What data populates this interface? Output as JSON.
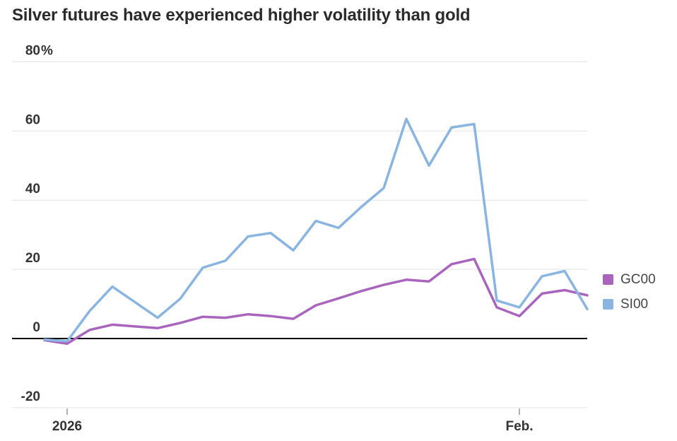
{
  "title": "Silver futures have experienced higher volatility than gold",
  "legend": {
    "items": [
      {
        "id": "gc00",
        "label": "GC00",
        "color": "#a965bd"
      },
      {
        "id": "si00",
        "label": "SI00",
        "color": "#8ab5e0"
      }
    ]
  },
  "colors": {
    "gc00_line": "#a965bd",
    "si00_line": "#8ab5e0",
    "gridline": "#e2e2e2",
    "zero_axis": "#000000",
    "tick_mark": "#999999",
    "axis_text": "#333333",
    "title_text": "#2b2b2b"
  },
  "chart_data": {
    "type": "line",
    "title": "Silver futures have experienced higher volatility than gold",
    "xlabel": "",
    "ylabel": "%",
    "ylim": [
      -20,
      80
    ],
    "grid": true,
    "legend_position": "right",
    "y_ticks": [
      {
        "value": 80,
        "label": "80%"
      },
      {
        "value": 60,
        "label": "60"
      },
      {
        "value": 40,
        "label": "40"
      },
      {
        "value": 20,
        "label": "20"
      },
      {
        "value": 0,
        "label": "0"
      },
      {
        "value": -20,
        "label": "-20"
      }
    ],
    "x_ticks": [
      {
        "index": 1,
        "label": "2026"
      },
      {
        "index": 21,
        "label": "Feb."
      }
    ],
    "x": [
      0,
      1,
      2,
      3,
      4,
      5,
      6,
      7,
      8,
      9,
      10,
      11,
      12,
      13,
      14,
      15,
      16,
      17,
      18,
      19,
      20,
      21,
      22,
      23,
      24
    ],
    "series": [
      {
        "name": "GC00",
        "color": "#a965bd",
        "values": [
          -0.5,
          -1.5,
          2.5,
          4,
          3.5,
          3,
          4.5,
          6.3,
          6,
          7,
          6.5,
          5.7,
          9.6,
          11.6,
          13.7,
          15.5,
          17,
          16.5,
          21.5,
          23,
          9,
          6.5,
          13,
          14,
          12.5
        ]
      },
      {
        "name": "SI00",
        "color": "#8ab5e0",
        "values": [
          -0.3,
          -0.8,
          8,
          15,
          10.5,
          6,
          11.5,
          20.5,
          22.5,
          29.5,
          30.5,
          25.5,
          34,
          32,
          38,
          43.5,
          63.5,
          50,
          61,
          62,
          11,
          9,
          18,
          19.5,
          8.5
        ]
      }
    ]
  }
}
